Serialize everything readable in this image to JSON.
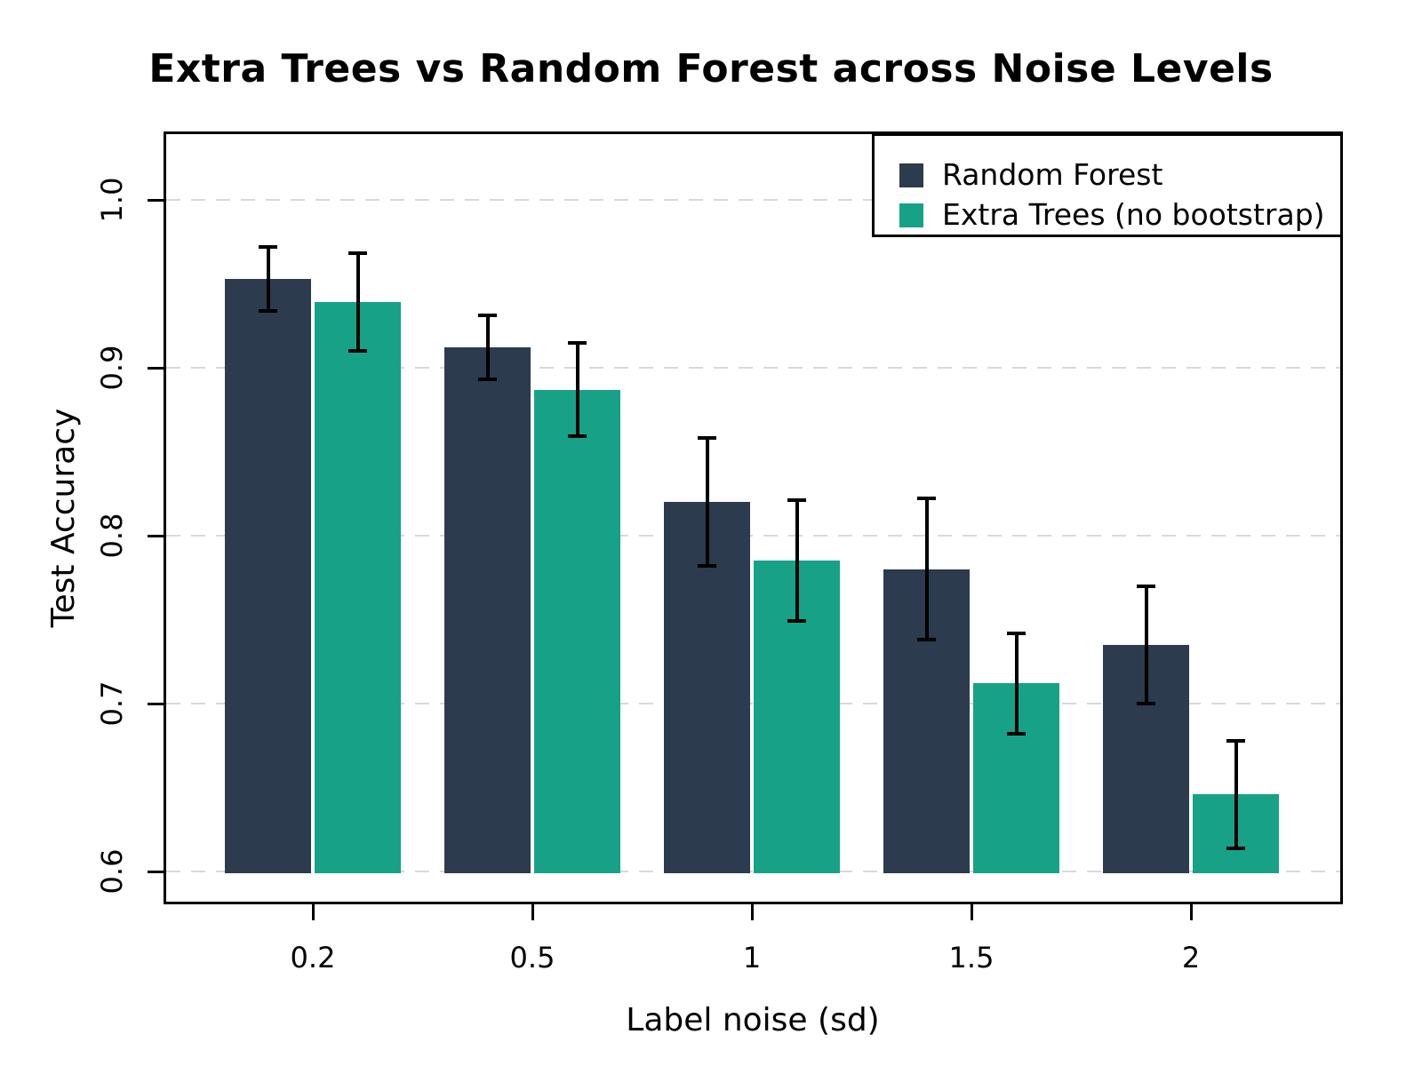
{
  "title": "Extra Trees vs Random Forest across Noise Levels",
  "chart_data": {
    "type": "bar",
    "title": "Extra Trees vs Random Forest across Noise Levels",
    "xlabel": "Label noise (sd)",
    "ylabel": "Test Accuracy",
    "categories": [
      "0.2",
      "0.5",
      "1",
      "1.5",
      "2"
    ],
    "series": [
      {
        "name": "Random Forest",
        "color": "#2c3b4d",
        "values": [
          0.953,
          0.912,
          0.82,
          0.78,
          0.735
        ],
        "errors": [
          0.019,
          0.019,
          0.038,
          0.042,
          0.035
        ]
      },
      {
        "name": "Extra Trees (no bootstrap)",
        "color": "#17a287",
        "values": [
          0.939,
          0.887,
          0.785,
          0.712,
          0.646
        ],
        "errors": [
          0.029,
          0.028,
          0.036,
          0.03,
          0.032
        ]
      }
    ],
    "yticks": [
      "1.0",
      "0.9",
      "0.8",
      "0.7",
      "0.6"
    ],
    "ytick_values": [
      1.0,
      0.9,
      0.8,
      0.7,
      0.6
    ],
    "ylim": [
      0.58,
      1.04
    ],
    "bar_baseline": 0.6,
    "grid": "horizontal-dashed",
    "gridline_color": "#d9d9d9",
    "error_bar_color": "#000000",
    "legend_position": "top-right"
  }
}
